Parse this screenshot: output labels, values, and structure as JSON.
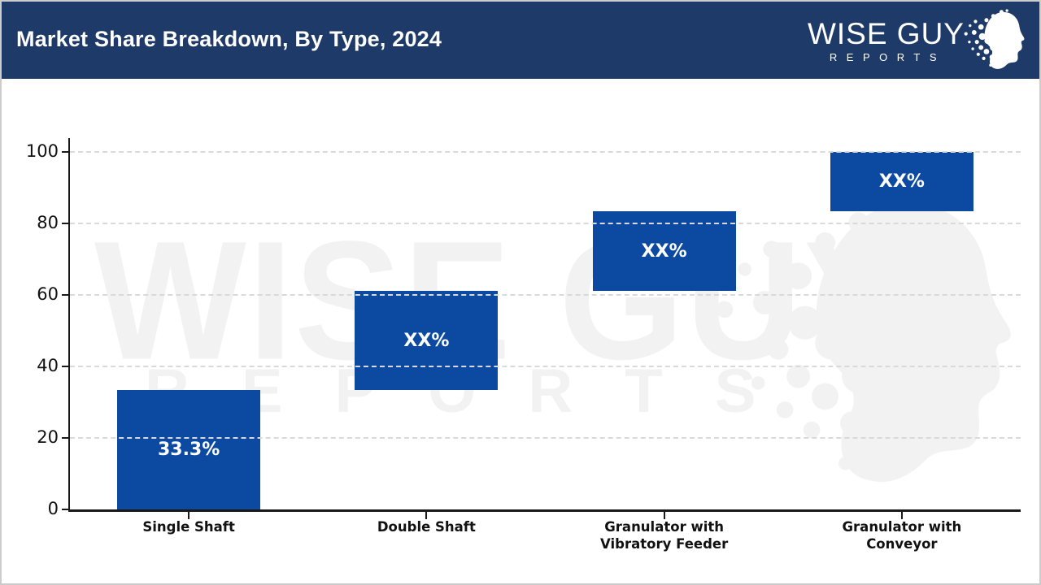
{
  "header": {
    "title": "Market Share Breakdown, By Type, 2024",
    "brand": {
      "line1": "WISE GUY",
      "line2": "REPORTS"
    }
  },
  "watermark": {
    "line1": "WISE GUY",
    "line2": "REPORTS"
  },
  "colors": {
    "header_bg": "#1e3a68",
    "bar": "#0c4aa2",
    "grid": "#d9d9d9",
    "axis": "#1a1a1a",
    "watermark": "#f2f2f2",
    "title_text": "#ffffff",
    "bar_label_text": "#ffffff"
  },
  "chart_data": {
    "type": "bar",
    "subtype": "waterfall",
    "title": "Market Share Breakdown, By Type, 2024",
    "categories": [
      "Single Shaft",
      "Double Shaft",
      "Granulator with Vibratory Feeder",
      "Granulator with Conveyor"
    ],
    "bars": [
      {
        "category": "Single Shaft",
        "label": "33.3%",
        "start": 0,
        "end": 33.3
      },
      {
        "category": "Double Shaft",
        "label": "XX%",
        "start": 33.3,
        "end": 61.1
      },
      {
        "category": "Granulator with Vibratory Feeder",
        "label": "XX%",
        "start": 61.1,
        "end": 83.4
      },
      {
        "category": "Granulator with Conveyor",
        "label": "XX%",
        "start": 83.4,
        "end": 100
      }
    ],
    "xlabel": "",
    "ylabel": "",
    "ylim": [
      0,
      100
    ],
    "yticks": [
      0,
      20,
      40,
      60,
      80,
      100
    ],
    "grid": "dashed-horizontal-over-bars",
    "legend": "none"
  }
}
